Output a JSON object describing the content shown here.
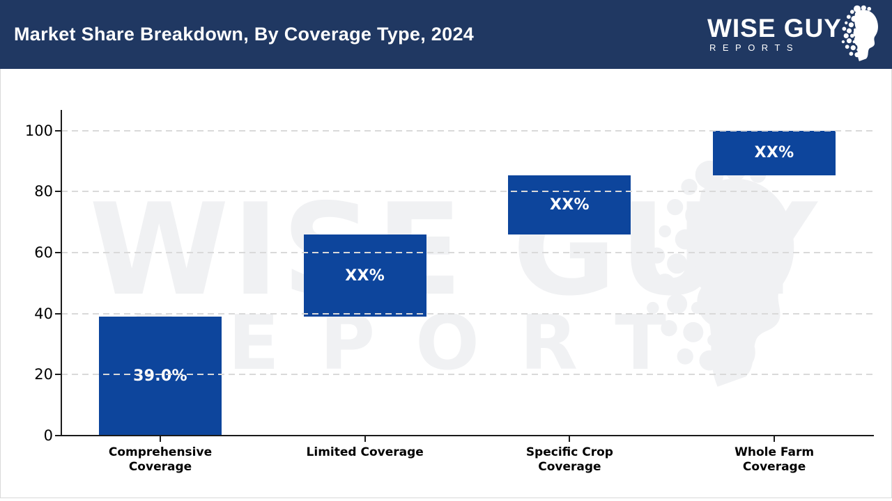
{
  "header": {
    "title": "Market Share Breakdown, By Coverage Type, 2024",
    "background_color": "#203862",
    "logo": {
      "line1": "WISE GUY",
      "line2": "REPORTS"
    }
  },
  "watermark": {
    "line1": "WISE GUY",
    "line2": "REPORTS"
  },
  "chart_data": {
    "type": "bar",
    "variant": "waterfall",
    "title": "Market Share Breakdown, By Coverage Type, 2024",
    "categories": [
      "Comprehensive Coverage",
      "Limited Coverage",
      "Specific Crop Coverage",
      "Whole Farm Coverage"
    ],
    "segments": [
      {
        "category": "Comprehensive Coverage",
        "start": 0,
        "end": 39,
        "value": 39.0,
        "label": "39.0%",
        "tick_label_lines": [
          "Comprehensive",
          "Coverage"
        ]
      },
      {
        "category": "Limited Coverage",
        "start": 39,
        "end": 65.8,
        "value": 26.8,
        "label": "XX%",
        "tick_label_lines": [
          "Limited Coverage"
        ]
      },
      {
        "category": "Specific Crop Coverage",
        "start": 65.8,
        "end": 85.3,
        "value": 19.5,
        "label": "XX%",
        "tick_label_lines": [
          "Specific Crop",
          "Coverage"
        ]
      },
      {
        "category": "Whole Farm Coverage",
        "start": 85.3,
        "end": 100,
        "value": 14.7,
        "label": "XX%",
        "tick_label_lines": [
          "Whole Farm",
          "Coverage"
        ]
      }
    ],
    "xlabel": "",
    "ylabel": "",
    "ylim": [
      0,
      100
    ],
    "yticks": [
      0,
      20,
      40,
      60,
      80,
      100
    ],
    "grid": "horizontal dashed, drawn over bars",
    "legend": "none",
    "bar_color": "#0d459c",
    "bar_label_color": "#ffffff"
  }
}
